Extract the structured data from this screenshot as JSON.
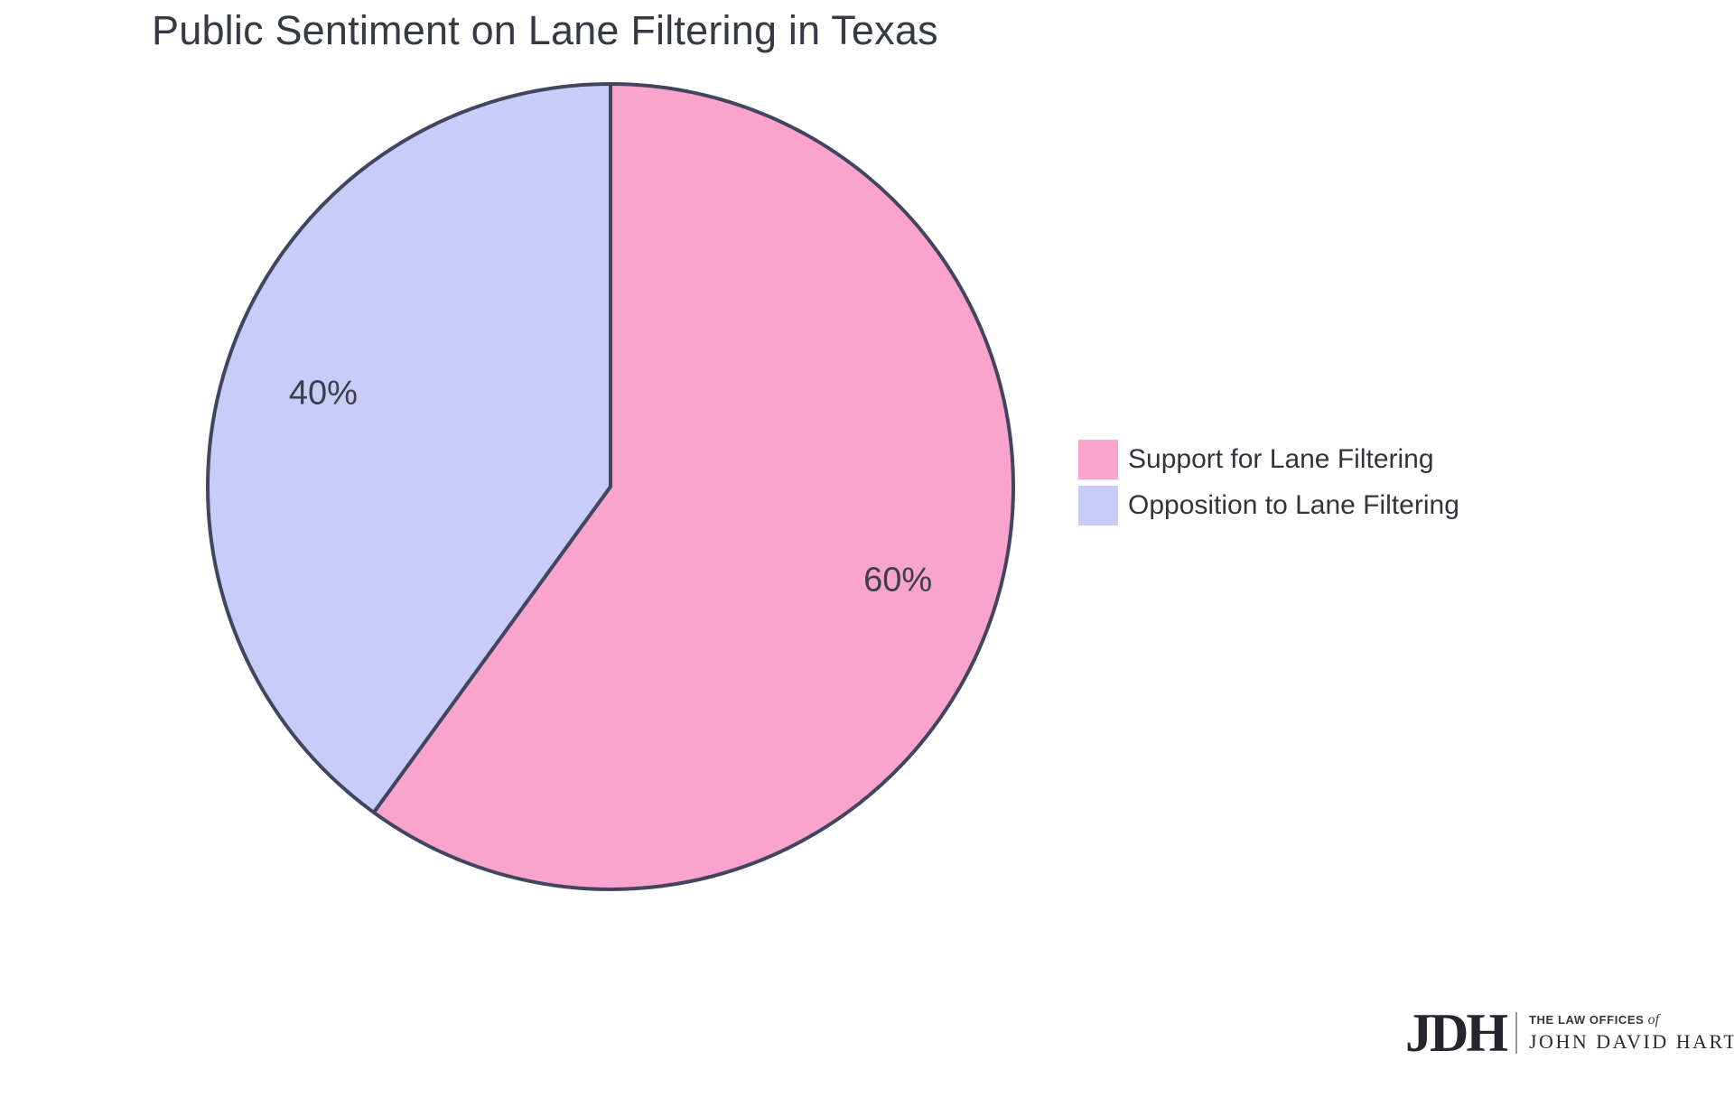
{
  "chart_data": {
    "type": "pie",
    "title": "Public Sentiment on Lane Filtering in Texas",
    "slices": [
      {
        "label": "Support for Lane Filtering",
        "value": 60,
        "percent_label": "60%",
        "color": "#F9A3CD"
      },
      {
        "label": "Opposition to Lane Filtering",
        "value": 40,
        "percent_label": "40%",
        "color": "#C9CBF8"
      }
    ],
    "start_angle_deg": 0,
    "direction": "clockwise",
    "stroke_color": "#41465F",
    "stroke_width": 4,
    "label_radius_fraction": 0.75,
    "legend_position": "right",
    "background": "#FFFFFF",
    "label_color": "#3B3F4A",
    "title_color": "#363A43"
  },
  "branding": {
    "monogram": "JDH",
    "tagline_prefix": "THE LAW OFFICES",
    "tagline_of": "of",
    "firm_name": "JOHN DAVID HART"
  }
}
